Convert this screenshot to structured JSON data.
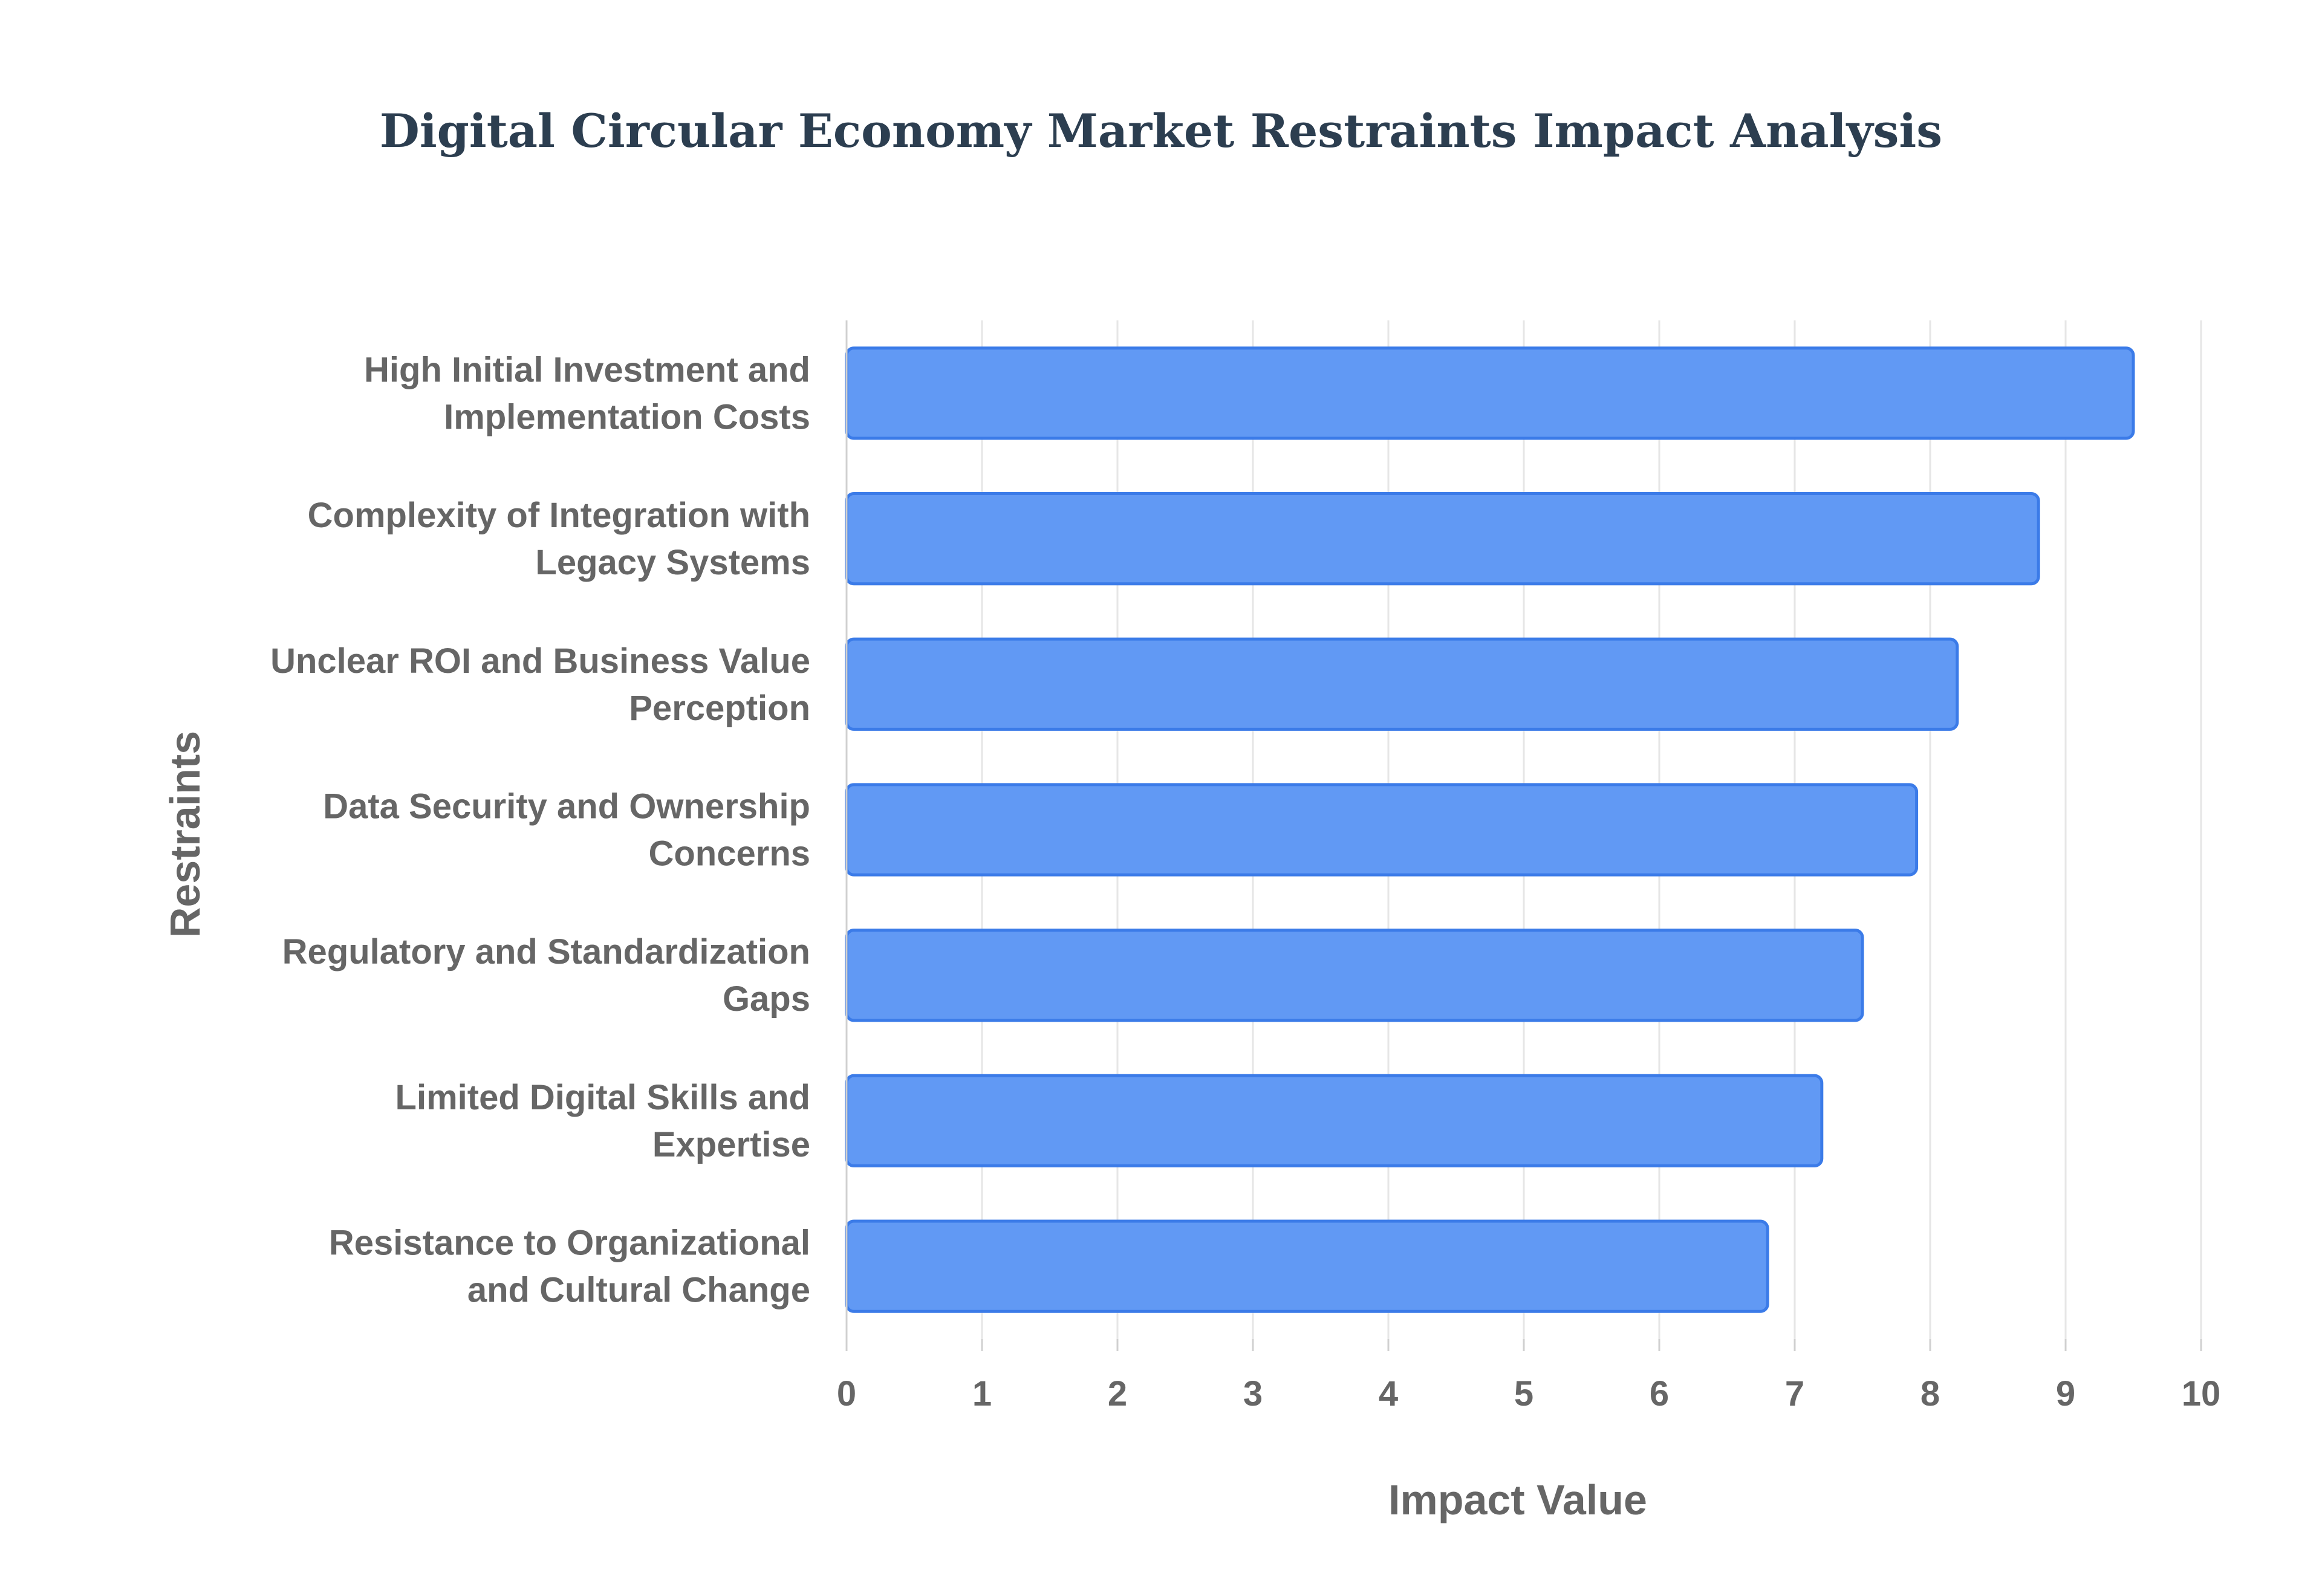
{
  "chart_data": {
    "type": "bar",
    "orientation": "horizontal",
    "title": "Digital Circular Economy Market Restraints Impact Analysis",
    "xlabel": "Impact Value",
    "ylabel": "Restraints",
    "xlim": [
      0,
      10
    ],
    "x_ticks": [
      "0",
      "1",
      "2",
      "3",
      "4",
      "5",
      "6",
      "7",
      "8",
      "9",
      "10"
    ],
    "grid": true,
    "legend": "none",
    "bar_color": "#6199f4",
    "bar_border_color": "#3b7be8",
    "categories": [
      [
        "High Initial Investment and",
        "Implementation Costs"
      ],
      [
        "Complexity of Integration with",
        "Legacy Systems"
      ],
      [
        "Unclear ROI and Business Value",
        "Perception"
      ],
      [
        "Data Security and Ownership",
        "Concerns"
      ],
      [
        "Regulatory and Standardization",
        "Gaps"
      ],
      [
        "Limited Digital Skills and",
        "Expertise"
      ],
      [
        "Resistance to Organizational",
        "and Cultural Change"
      ]
    ],
    "values": [
      9.5,
      8.8,
      8.2,
      7.9,
      7.5,
      7.2,
      6.8
    ]
  }
}
